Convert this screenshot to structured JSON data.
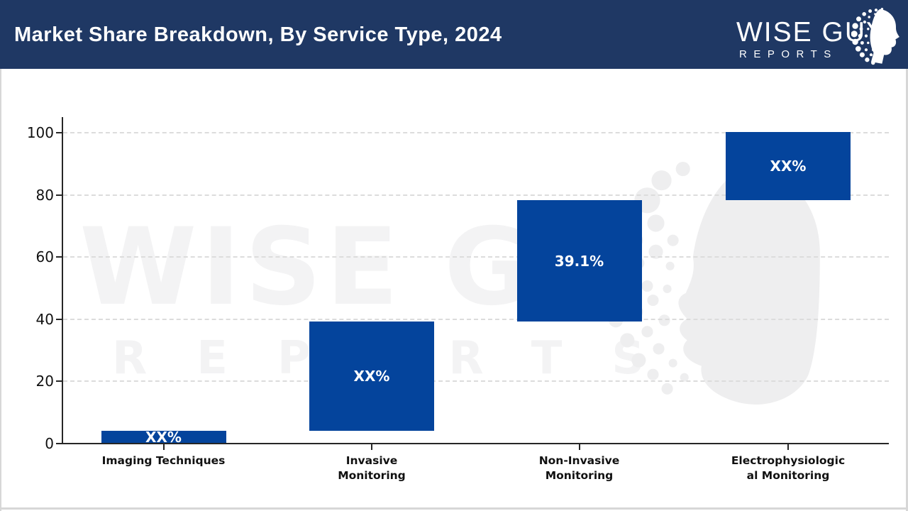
{
  "header": {
    "title": "Market Share Breakdown, By Service Type, 2024",
    "logo": {
      "main": "WISE GUY",
      "sub": "REPORTS",
      "head_icon": "dotted-head-profile"
    }
  },
  "watermark": {
    "main": "WISE GU",
    "sub": "REPORTS",
    "head_icon": "dotted-head-profile"
  },
  "colors": {
    "header_bg": "#1f3864",
    "bar": "#04449c",
    "gridline": "#dcdcdc",
    "axis": "#262626",
    "watermark": "#f3f3f4",
    "page_border": "#d7d7d7",
    "bar_label": "#ffffff"
  },
  "chart_data": {
    "type": "bar",
    "style": "waterfall-floating-bars",
    "title": "Market Share Breakdown, By Service Type, 2024",
    "xlabel": "",
    "ylabel": "",
    "ylim": [
      0,
      105
    ],
    "grid": "dashed-horizontal",
    "legend": "none",
    "yticks": [
      {
        "value": 0,
        "label": "0"
      },
      {
        "value": 20,
        "label": "20"
      },
      {
        "value": 40,
        "label": "40"
      },
      {
        "value": 60,
        "label": "60"
      },
      {
        "value": 80,
        "label": "80"
      },
      {
        "value": 100,
        "label": "100"
      }
    ],
    "categories": [
      "Imaging Techniques",
      "Invasive Monitoring",
      "Non-Invasive Monitoring",
      "Electrophysiological Monitoring"
    ],
    "segments": [
      {
        "category": "Imaging Techniques",
        "label_lines": [
          "Imaging Techniques"
        ],
        "start": 0,
        "end": 4.1,
        "value_label": "XX%"
      },
      {
        "category": "Invasive Monitoring",
        "label_lines": [
          "Invasive",
          "Monitoring"
        ],
        "start": 4.1,
        "end": 39.2,
        "value_label": "XX%"
      },
      {
        "category": "Non-Invasive Monitoring",
        "label_lines": [
          "Non-Invasive",
          "Monitoring"
        ],
        "start": 39.2,
        "end": 78.3,
        "value_label": "39.1%",
        "value": 39.1
      },
      {
        "category": "Electrophysiological Monitoring",
        "label_lines": [
          "Electrophysiologic",
          "al Monitoring"
        ],
        "start": 78.3,
        "end": 100.2,
        "value_label": "XX%"
      }
    ]
  }
}
